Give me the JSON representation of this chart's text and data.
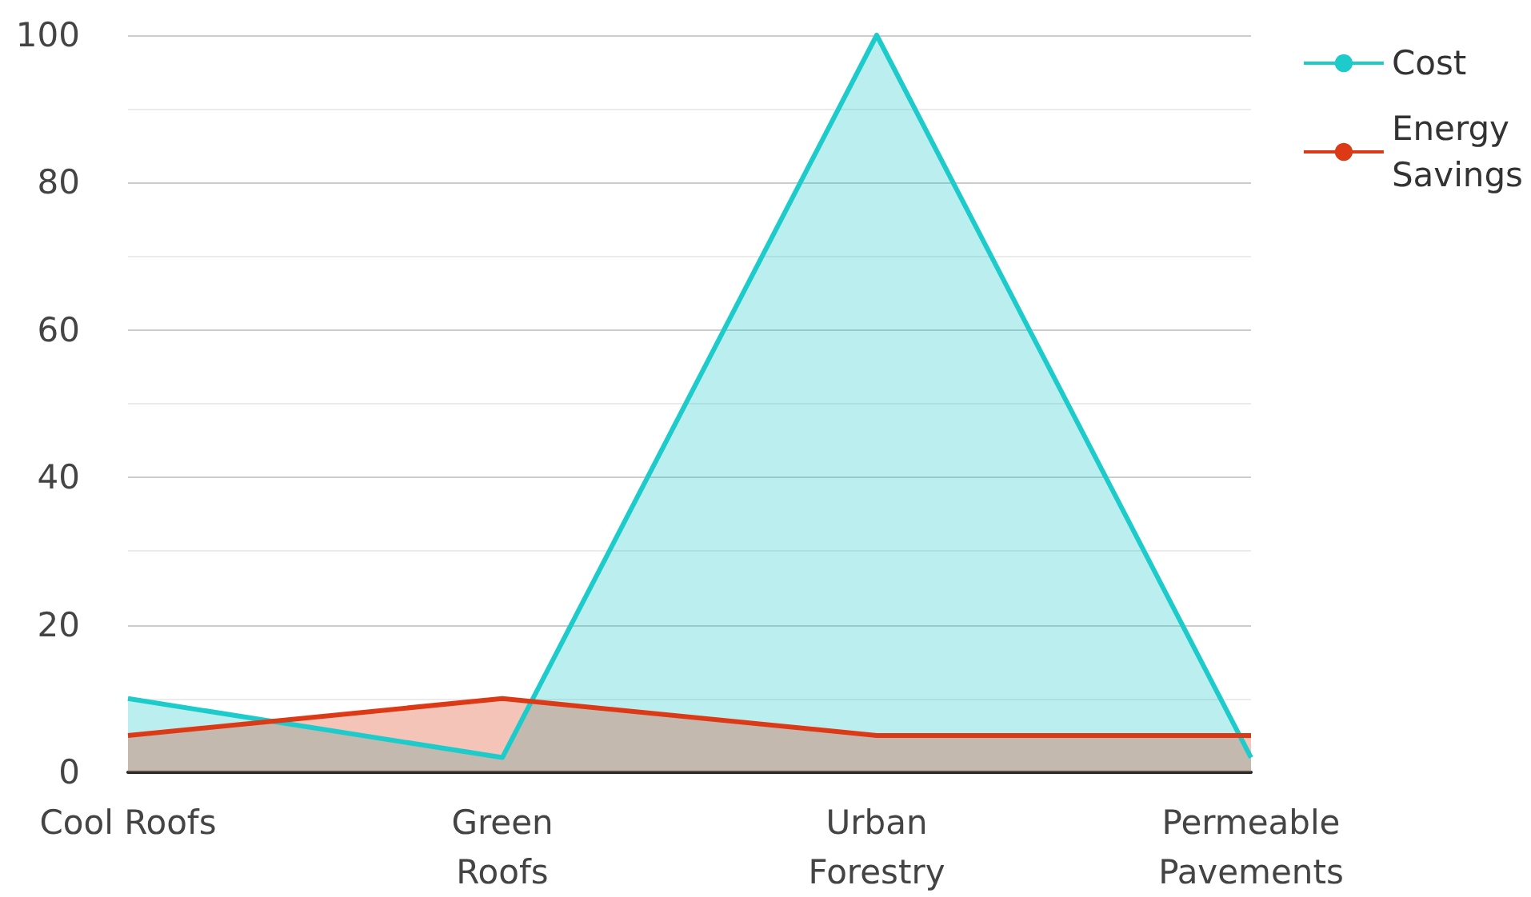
{
  "chart_data": {
    "type": "area",
    "categories": [
      "Cool Roofs",
      "Green Roofs",
      "Urban Forestry",
      "Permeable Pavements"
    ],
    "series": [
      {
        "name": "Cost",
        "color": "#1ecbcb",
        "values": [
          10,
          2,
          100,
          2
        ]
      },
      {
        "name": "Energy Savings",
        "color": "#dc3a17",
        "values": [
          5,
          10,
          5,
          5
        ]
      }
    ],
    "ylim": [
      0,
      100
    ],
    "yticks": [
      0,
      20,
      40,
      60,
      80,
      100
    ],
    "grid": "y",
    "legend": "top right"
  }
}
